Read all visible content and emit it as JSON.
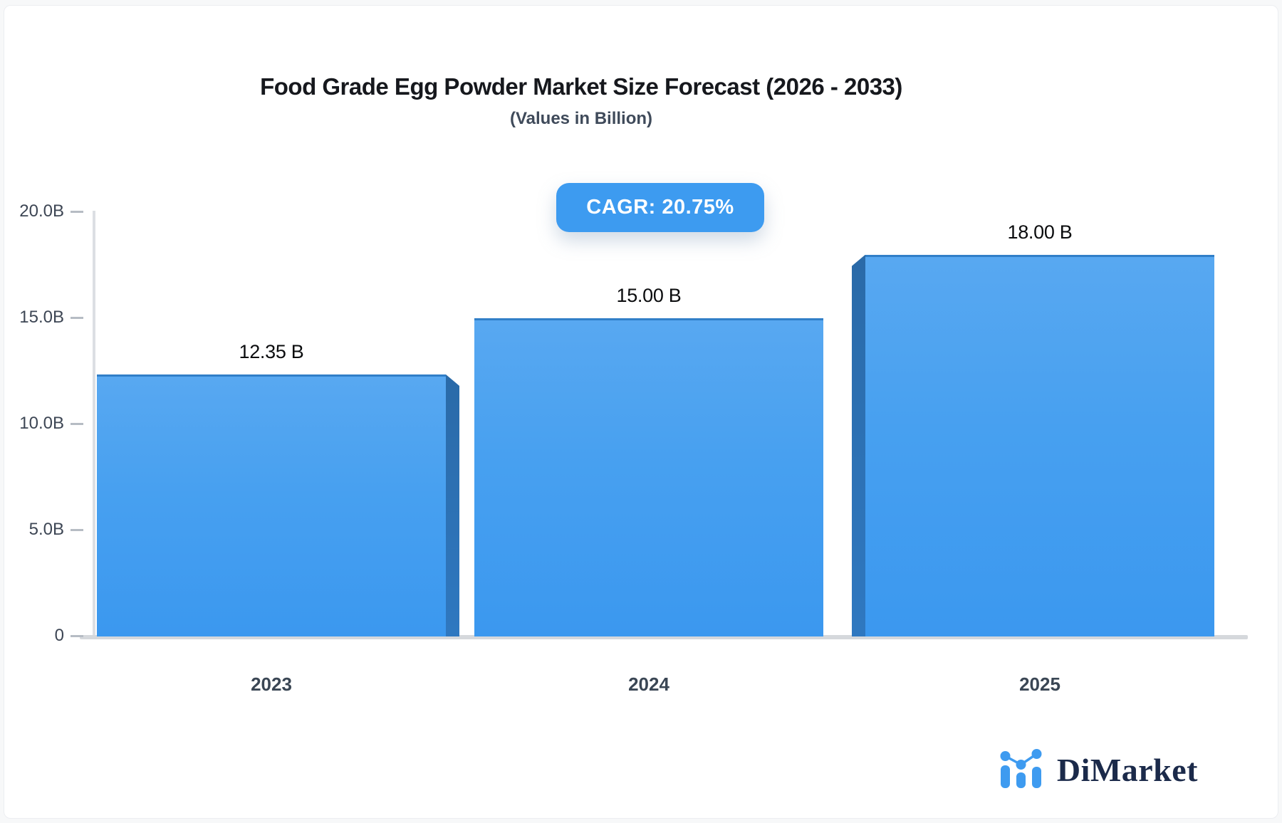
{
  "page": {
    "background": "#f7f8f9",
    "card_background": "#ffffff"
  },
  "header": {
    "title": "Food Grade Egg Powder Market Size Forecast (2026 - 2033)",
    "subtitle": "(Values in Billion)",
    "cagr_badge": "CAGR: 20.75%"
  },
  "chart_data": {
    "type": "bar",
    "title": "Food Grade Egg Powder Market Size Forecast (2026 - 2033)",
    "subtitle": "(Values in Billion)",
    "annotation": "CAGR: 20.75%",
    "categories": [
      "2023",
      "2024",
      "2025"
    ],
    "values": [
      12.35,
      15.0,
      18.0
    ],
    "bar_labels": [
      "12.35 B",
      "15.00 B",
      "18.00 B"
    ],
    "xlabel": "",
    "ylabel": "",
    "ylim": [
      0,
      20
    ],
    "yticks": [
      {
        "value": 0,
        "label": "0"
      },
      {
        "value": 5,
        "label": "5.0B"
      },
      {
        "value": 10,
        "label": "10.0B"
      },
      {
        "value": 15,
        "label": "15.0B"
      },
      {
        "value": 20,
        "label": "20.0B"
      }
    ],
    "grid": false,
    "legend": false,
    "bar_style": "3d-bevel-gradient"
  },
  "colors": {
    "accent": "#3d9bf0",
    "badge_background": "#3d9bf0",
    "badge_text": "#ffffff",
    "bar_gradient_top": "#58a8f1",
    "bar_gradient_bottom": "#3b98ef",
    "bar_side_face": "#2d71b2",
    "title_text": "#16181d",
    "subtitle_text": "#3f4a5a",
    "axis_text": "#3d4654",
    "axis_line": "#d9dce0",
    "value_label_text": "#0b0c0e",
    "logo_text": "#1b2a4a",
    "logo_icon": "#3e9bf0"
  },
  "logo": {
    "text": "DiMarket",
    "icon": "mini-bar-line-chart-icon"
  }
}
